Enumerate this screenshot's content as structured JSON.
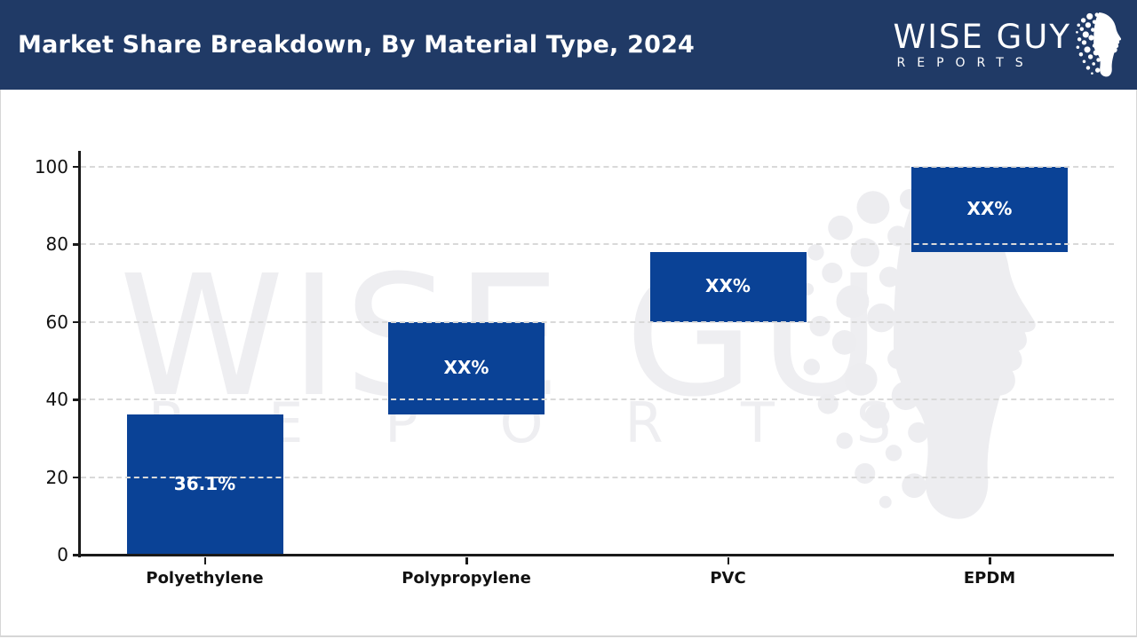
{
  "header": {
    "title": "Market Share Breakdown, By Material Type, 2024",
    "bg_color": "#203a66",
    "logo": {
      "brand_line1": "WISE GUY",
      "brand_line2": "REPORTS"
    }
  },
  "watermark": {
    "line1": "WISE GUY",
    "line2": "REPORTS"
  },
  "chart_data": {
    "type": "bar",
    "subtype": "floating-waterfall",
    "title": "Market Share Breakdown, By Material Type, 2024",
    "categories": [
      "Polyethylene",
      "Polypropylene",
      "PVC",
      "EPDM"
    ],
    "bars": [
      {
        "category": "Polyethylene",
        "start": 0,
        "end": 36.1,
        "label": "36.1%"
      },
      {
        "category": "Polypropylene",
        "start": 36.1,
        "end": 60,
        "label": "XX%"
      },
      {
        "category": "PVC",
        "start": 60,
        "end": 78,
        "label": "XX%"
      },
      {
        "category": "EPDM",
        "start": 78,
        "end": 100,
        "label": "XX%"
      }
    ],
    "xlabel": "",
    "ylabel": "",
    "ylim": [
      0,
      100
    ],
    "yticks": [
      0,
      20,
      40,
      60,
      80,
      100
    ],
    "grid": {
      "horizontal": true,
      "style": "dashed",
      "color": "#d9d9d9",
      "above_bars": true
    },
    "legend": "none",
    "bar_color": "#0a4296",
    "bar_label_color": "#ffffff",
    "axis_color": "#1a1a1a",
    "tick_label_color": "#111111"
  }
}
